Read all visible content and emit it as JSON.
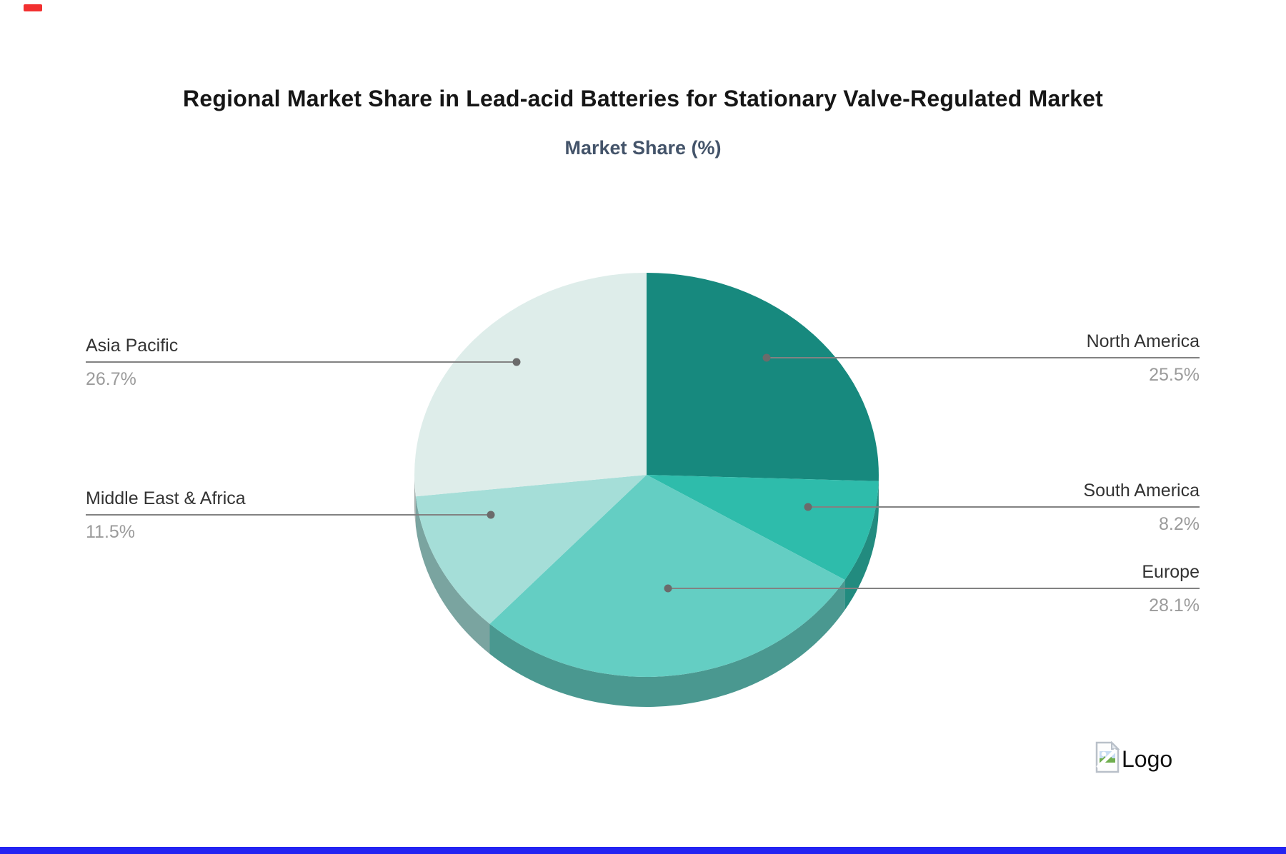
{
  "page": {
    "title": "Regional Market Share in Lead-acid Batteries for Stationary Valve-Regulated Market",
    "subtitle": "Market Share (%)"
  },
  "logo": {
    "text": "Logo"
  },
  "chart_data": {
    "type": "pie",
    "style": "3d",
    "title": "Regional Market Share in Lead-acid Batteries for Stationary Valve-Regulated Market",
    "subtitle": "Market Share (%)",
    "unit": "%",
    "direction": "clockwise",
    "start_angle": "12-o-clock",
    "legend_position": "none",
    "slices": [
      {
        "label": "North America",
        "value": 25.5,
        "pct_label": "25.5%",
        "color": "#17897e"
      },
      {
        "label": "South America",
        "value": 8.2,
        "pct_label": "8.2%",
        "color": "#2ebcab"
      },
      {
        "label": "Europe",
        "value": 28.1,
        "pct_label": "28.1%",
        "color": "#64cec3"
      },
      {
        "label": "Middle East & Africa",
        "value": 11.5,
        "pct_label": "11.5%",
        "color": "#a5ded8"
      },
      {
        "label": "Asia Pacific",
        "value": 26.7,
        "pct_label": "26.7%",
        "color": "#deedea"
      }
    ],
    "leader_line_color": "#828282",
    "leader_dot_color": "#6b6b6b",
    "label_color": "#333333",
    "pct_color": "#9b9b9b",
    "subtitle_color": "#44546a"
  }
}
